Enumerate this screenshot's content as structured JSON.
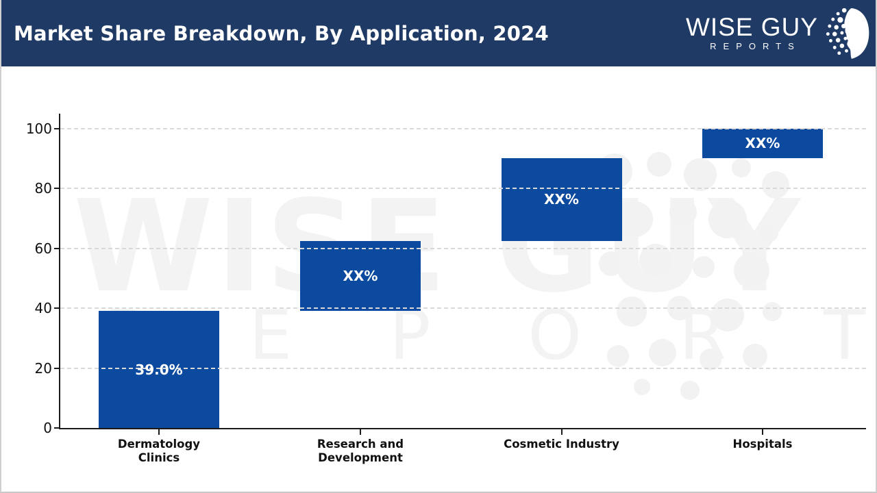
{
  "header": {
    "title": "Market Share Breakdown, By Application, 2024",
    "logo": {
      "line1": "WISE GUY",
      "line2": "REPORTS"
    }
  },
  "watermark": {
    "line1": "WISE GUY",
    "line2": "R E P O R T S"
  },
  "colors": {
    "header_bg": "#203a66",
    "bar": "#0b4a9e",
    "grid": "#d9d9d9",
    "axis": "#1a1a1a",
    "watermark": "#f3f3f3",
    "bar_label": "#ffffff"
  },
  "chart_data": {
    "type": "bar",
    "subtype": "waterfall",
    "title": "Market Share Breakdown, By Application, 2024",
    "xlabel": "",
    "ylabel": "",
    "categories": [
      "Dermatology\nClinics",
      "Research and\nDevelopment",
      "Cosmetic Industry",
      "Hospitals"
    ],
    "bars": [
      {
        "category": "Dermatology Clinics",
        "start": 0,
        "end": 39.0,
        "label": "39.0%"
      },
      {
        "category": "Research and Development",
        "start": 39.0,
        "end": 62.5,
        "label": "XX%"
      },
      {
        "category": "Cosmetic Industry",
        "start": 62.5,
        "end": 90.0,
        "label": "XX%"
      },
      {
        "category": "Hospitals",
        "start": 90.0,
        "end": 100.0,
        "label": "XX%"
      }
    ],
    "yticks": [
      0,
      20,
      40,
      60,
      80,
      100
    ],
    "ylim": [
      0,
      105
    ],
    "grid": "horizontal-dashed-on-top",
    "legend": "none",
    "bar_color": "#0b4a9e"
  }
}
